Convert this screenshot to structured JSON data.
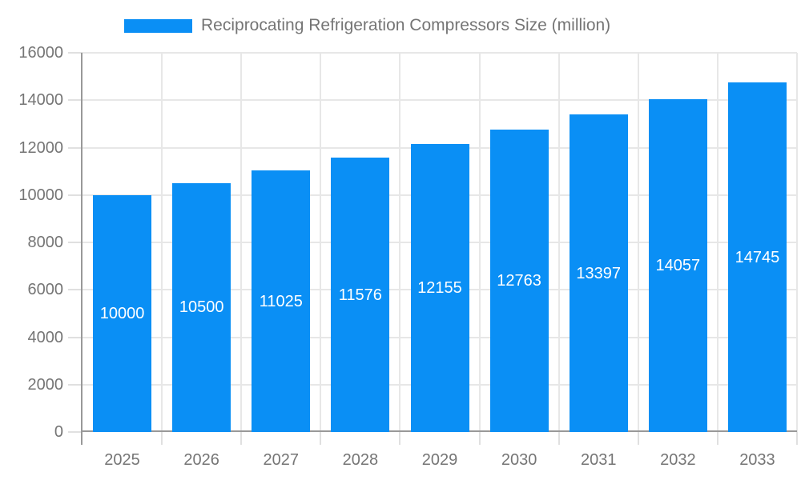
{
  "legend": {
    "label": "Reciprocating Refrigeration Compressors Size (million)"
  },
  "colors": {
    "bar": "#0a8ff5",
    "grid": "#e7e7e7",
    "tick": "#e0e0e0",
    "axis": "#999999",
    "label_gray": "#757575",
    "value_label": "#ffffff",
    "background": "#ffffff"
  },
  "chart_data": {
    "type": "bar",
    "title": "Reciprocating Refrigeration Compressors Size (million)",
    "categories": [
      "2025",
      "2026",
      "2027",
      "2028",
      "2029",
      "2030",
      "2031",
      "2032",
      "2033"
    ],
    "values": [
      10000,
      10500,
      11025,
      11576,
      12155,
      12763,
      13397,
      14057,
      14745
    ],
    "value_labels": [
      "10000",
      "10500",
      "11025",
      "11576",
      "12155",
      "12763",
      "13397",
      "14057",
      "14745"
    ],
    "xlabel": "",
    "ylabel": "",
    "ylim": [
      0,
      16000
    ],
    "ytick_step": 2000,
    "ytick_labels": [
      "0",
      "2000",
      "4000",
      "6000",
      "8000",
      "10000",
      "12000",
      "14000",
      "16000"
    ],
    "grid": true,
    "legend_position": "top",
    "value_label_position": "inside-center"
  }
}
